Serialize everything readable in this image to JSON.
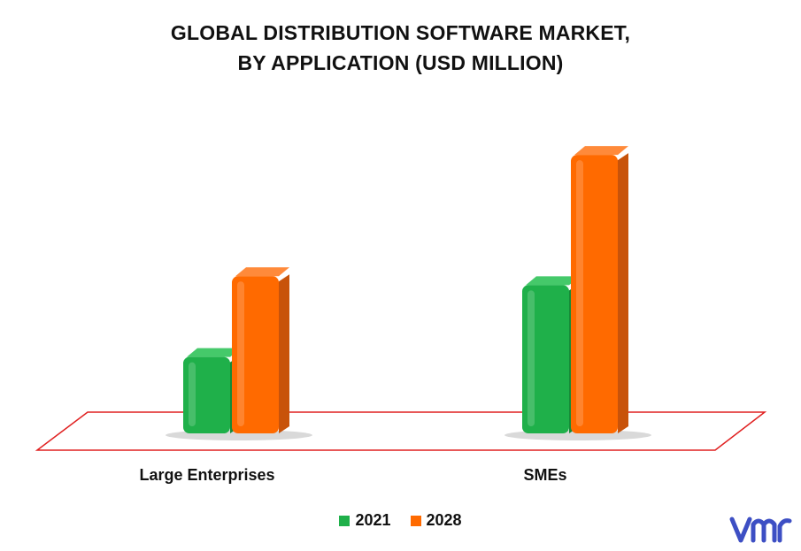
{
  "title": {
    "line1": "GLOBAL DISTRIBUTION SOFTWARE MARKET,",
    "line2": "BY APPLICATION (USD MILLION)"
  },
  "colors": {
    "series_2021": "#1fb04a",
    "series_2028": "#ff6a00",
    "floor_outline": "#e02020",
    "logo": "#3d4fc4"
  },
  "logo": {
    "icon": "vmr-logo-icon"
  },
  "chart_data": {
    "type": "bar",
    "categories": [
      "Large Enterprises",
      "SMEs"
    ],
    "series": [
      {
        "name": "2021",
        "values": [
          85,
          165
        ]
      },
      {
        "name": "2028",
        "values": [
          175,
          310
        ]
      }
    ],
    "title": "GLOBAL DISTRIBUTION SOFTWARE MARKET, BY APPLICATION (USD MILLION)",
    "xlabel": "",
    "ylabel": "",
    "ylim": [
      0,
      320
    ],
    "grid": false,
    "legend_position": "bottom"
  }
}
